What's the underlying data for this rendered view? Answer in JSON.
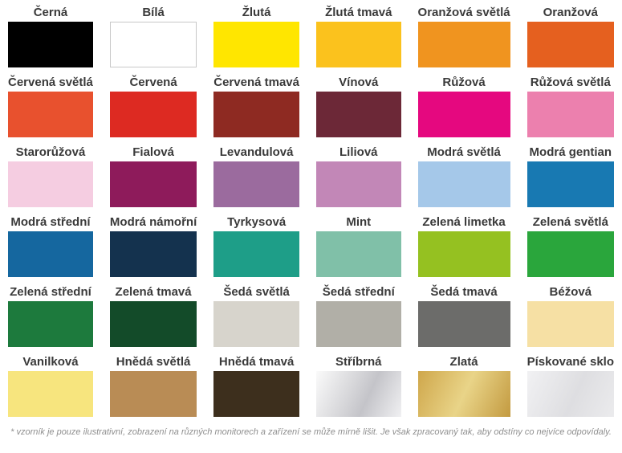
{
  "page": {
    "background": "#ffffff",
    "footnote": "* vzorník je pouze ilustrativní, zobrazení na různých monitorech a zařízení se může mírně lišit. Je však zpracovaný tak, aby odstíny co nejvíce odpovídaly."
  },
  "palette": {
    "label_color": "#3a3a3a",
    "swatches": [
      {
        "slug": "cerna",
        "name": "Černá",
        "color": "#000000"
      },
      {
        "slug": "bila",
        "name": "Bílá",
        "color": "#ffffff",
        "border": "#c8c8c8"
      },
      {
        "slug": "zluta",
        "name": "Žlutá",
        "color": "#ffe600"
      },
      {
        "slug": "zluta-tmava",
        "name": "Žlutá tmavá",
        "color": "#fbc21d"
      },
      {
        "slug": "oranzova-svetla",
        "name": "Oranžová světlá",
        "color": "#f0941f"
      },
      {
        "slug": "oranzova",
        "name": "Oranžová",
        "color": "#e5601f"
      },
      {
        "slug": "cervena-svetla",
        "name": "Červená světlá",
        "color": "#e8512e"
      },
      {
        "slug": "cervena",
        "name": "Červená",
        "color": "#dd2a22"
      },
      {
        "slug": "cervena-tmava",
        "name": "Červená tmavá",
        "color": "#8e2a22"
      },
      {
        "slug": "vinova",
        "name": "Vínová",
        "color": "#6c2837"
      },
      {
        "slug": "ruzova",
        "name": "Růžová",
        "color": "#e5087f"
      },
      {
        "slug": "ruzova-svetla",
        "name": "Růžová světlá",
        "color": "#ec80ae"
      },
      {
        "slug": "staroruzova",
        "name": "Starorůžová",
        "color": "#f5cde1"
      },
      {
        "slug": "fialova",
        "name": "Fialová",
        "color": "#8e1b5b"
      },
      {
        "slug": "levandulova",
        "name": "Levandulová",
        "color": "#9b6b9e"
      },
      {
        "slug": "liliova",
        "name": "Liliová",
        "color": "#c287b7"
      },
      {
        "slug": "modra-svetla",
        "name": "Modrá světlá",
        "color": "#a5c8e9"
      },
      {
        "slug": "modra-gentian",
        "name": "Modrá gentian",
        "color": "#1879b2"
      },
      {
        "slug": "modra-stredni",
        "name": "Modrá střední",
        "color": "#15679f"
      },
      {
        "slug": "modra-namorni",
        "name": "Modrá námořní",
        "color": "#14324e"
      },
      {
        "slug": "tyrkysova",
        "name": "Tyrkysová",
        "color": "#1e9e88"
      },
      {
        "slug": "mint",
        "name": "Mint",
        "color": "#80c0a8"
      },
      {
        "slug": "zelena-limetka",
        "name": "Zelená limetka",
        "color": "#95c121"
      },
      {
        "slug": "zelena-svetla",
        "name": "Zelená světlá",
        "color": "#2aa63c"
      },
      {
        "slug": "zelena-stredni",
        "name": "Zelená střední",
        "color": "#1d7a3d"
      },
      {
        "slug": "zelena-tmava",
        "name": "Zelená tmavá",
        "color": "#134b29"
      },
      {
        "slug": "seda-svetla",
        "name": "Šedá světlá",
        "color": "#d7d4cc"
      },
      {
        "slug": "seda-stredni",
        "name": "Šedá střední",
        "color": "#b1afa7"
      },
      {
        "slug": "seda-tmava",
        "name": "Šedá tmavá",
        "color": "#6c6c6a"
      },
      {
        "slug": "bezova",
        "name": "Béžová",
        "color": "#f6e0a4"
      },
      {
        "slug": "vanilkova",
        "name": "Vanilková",
        "color": "#f7e57e"
      },
      {
        "slug": "hneda-svetla",
        "name": "Hnědá světlá",
        "color": "#b98c55"
      },
      {
        "slug": "hneda-tmava",
        "name": "Hnědá tmavá",
        "color": "#3d2f1d"
      },
      {
        "slug": "stribrna",
        "name": "Stříbrná",
        "gradient": [
          "#fafafa 0%",
          "#d7d7da 40%",
          "#c4c4c9 60%",
          "#f0f0f2 100%"
        ]
      },
      {
        "slug": "zlata",
        "name": "Zlatá",
        "gradient": [
          "#cfa74b 0%",
          "#e9d488 50%",
          "#c39a40 100%"
        ]
      },
      {
        "slug": "piskovane-sklo",
        "name": "Pískované sklo",
        "gradient": [
          "#f1f1f3 0%",
          "#dedee1 55%",
          "#ebebed 100%"
        ]
      }
    ]
  }
}
